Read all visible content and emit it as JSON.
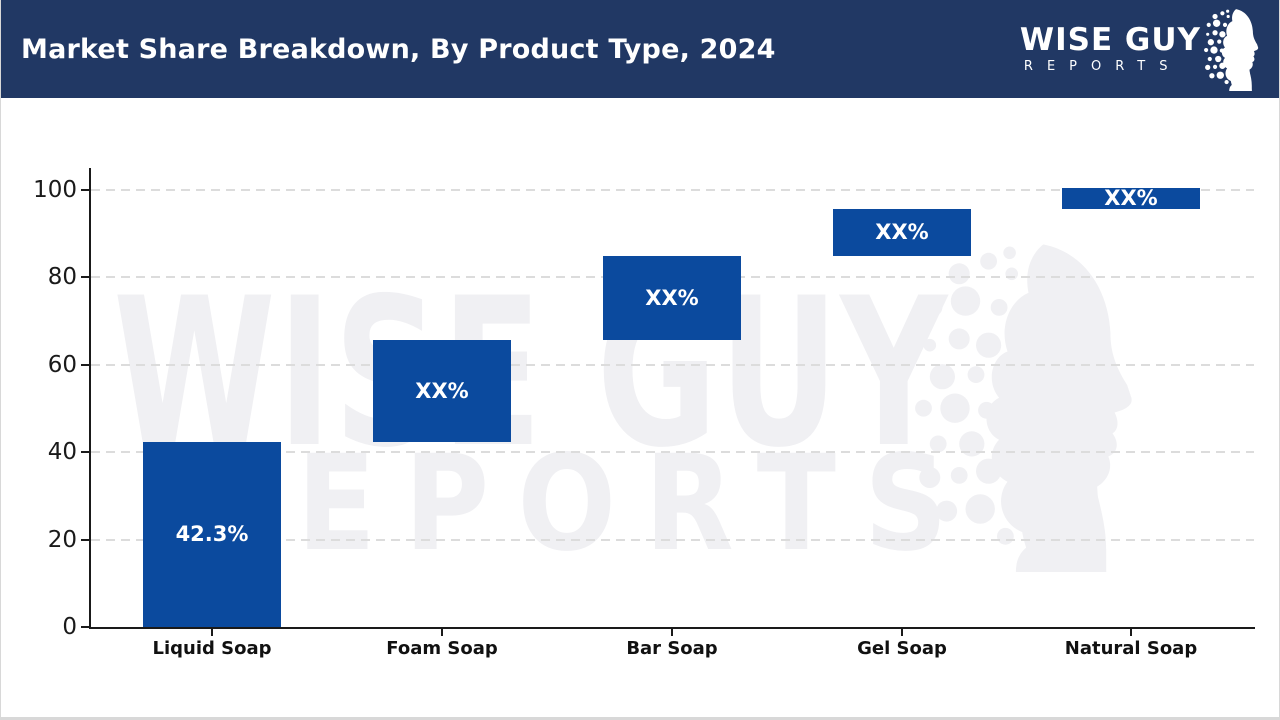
{
  "header": {
    "title": "Market Share Breakdown, By Product Type, 2024",
    "logo_line1": "WISE GUY",
    "logo_line2": "REPORTS"
  },
  "watermark": {
    "line1": "WISE GUY",
    "line2": "REPORTS"
  },
  "colors": {
    "header_bg": "#213864",
    "bar": "#0b4a9e",
    "bar_label": "#ffffff",
    "axis": "#1a1a1a",
    "gridline": "#dcdcdc",
    "watermark": "#f0f0f3"
  },
  "chart_data": {
    "type": "bar",
    "subtype": "floating-waterfall",
    "title": "Market Share Breakdown, By Product Type, 2024",
    "categories": [
      "Liquid Soap",
      "Foam Soap",
      "Bar Soap",
      "Gel Soap",
      "Natural Soap"
    ],
    "segments": [
      {
        "category": "Liquid Soap",
        "start": 0,
        "end": 42.3,
        "label": "42.3%"
      },
      {
        "category": "Foam Soap",
        "start": 42.3,
        "end": 65.6,
        "label": "XX%"
      },
      {
        "category": "Bar Soap",
        "start": 65.6,
        "end": 84.9,
        "label": "XX%"
      },
      {
        "category": "Gel Soap",
        "start": 84.9,
        "end": 95.6,
        "label": "XX%"
      },
      {
        "category": "Natural Soap",
        "start": 95.6,
        "end": 100.3,
        "label": "XX%"
      }
    ],
    "xlabel": "",
    "ylabel": "",
    "ylim": [
      0,
      105
    ],
    "yticks": [
      0,
      20,
      40,
      60,
      80,
      100
    ],
    "grid": "horizontal-dashed",
    "legend": "none",
    "bar_color": "#0b4a9e"
  }
}
